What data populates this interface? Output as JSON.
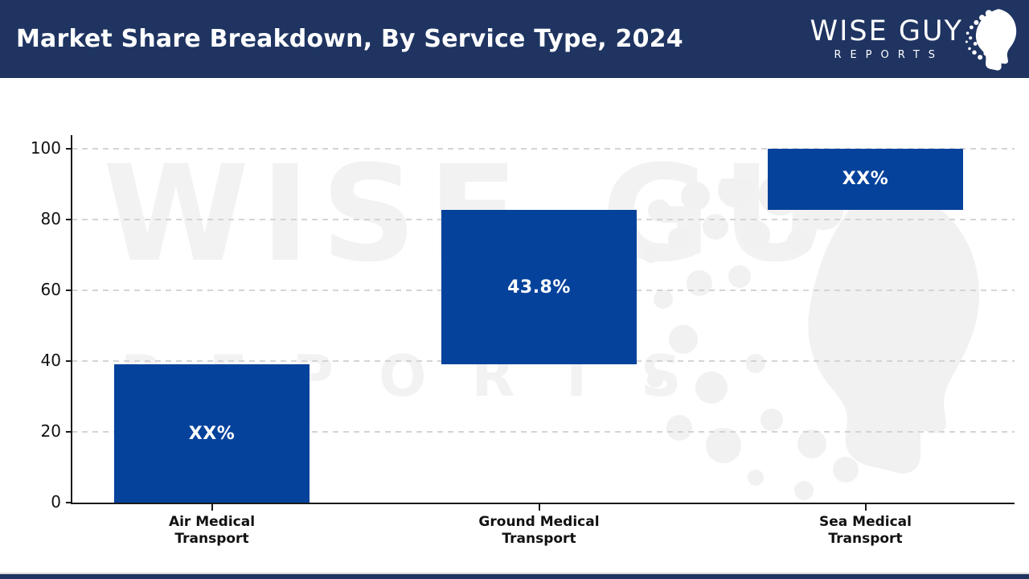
{
  "header": {
    "title": "Market Share Breakdown, By Service Type, 2024",
    "logo": {
      "line1": "WISE GUY",
      "line2": "REPORTS"
    }
  },
  "watermark": {
    "line1": "WISE GUY",
    "line2": "REPORTS"
  },
  "chart_data": {
    "type": "bar",
    "subtype": "waterfall-stacked-segments",
    "title": "Market Share Breakdown, By Service Type, 2024",
    "categories": [
      "Air Medical Transport",
      "Ground Medical Transport",
      "Sea Medical Transport"
    ],
    "category_lines": [
      [
        "Air Medical",
        "Transport"
      ],
      [
        "Ground Medical",
        "Transport"
      ],
      [
        "Sea Medical",
        "Transport"
      ]
    ],
    "series": [
      {
        "name": "Market share (%)",
        "bases": [
          0,
          39,
          82.8
        ],
        "values": [
          39,
          43.8,
          17.2
        ]
      }
    ],
    "bar_labels": [
      "XX%",
      "43.8%",
      "XX%"
    ],
    "ylim": [
      0,
      100
    ],
    "yticks": [
      0,
      20,
      40,
      60,
      80,
      100
    ],
    "grid": "horizontal-dashed",
    "legend": "none",
    "xlabel": "",
    "ylabel": ""
  },
  "colors": {
    "header_bg": "#1f3461",
    "footer_bg": "#1f3461",
    "bar": "#05429b",
    "bar_label": "#ffffff",
    "grid": "#d4d4d4",
    "axis": "#1a1a1a",
    "watermark": "#f2f2f2",
    "hairline": "#dcdcdc"
  }
}
